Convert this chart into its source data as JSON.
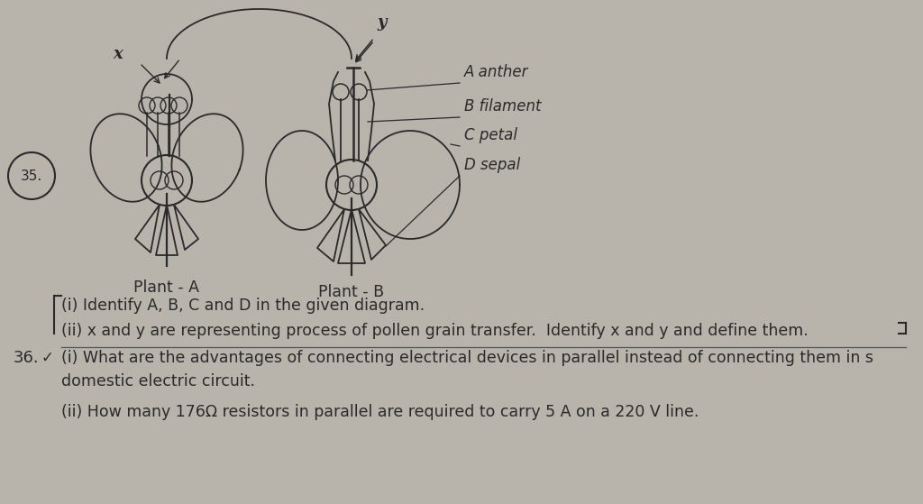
{
  "bg_color": "#b8b4ac",
  "page_color": "#d8d4cc",
  "question_number": "35.",
  "question_number_36": "36.",
  "plant_a_label": "Plant - A",
  "plant_b_label": "Plant - B",
  "label_a": "A anther",
  "label_b": "B filament",
  "label_c": "C petal",
  "label_d": "D sepal",
  "x_label": "x",
  "y_label": "y",
  "text_i": "(i) Identify A, B, C and D in the given diagram.",
  "text_ii": "(ii) x and y are representing process of pollen grain transfer.  Identify x and y and define them.",
  "text_36i": "(i) What are the advantages of connecting electrical devices in parallel instead of connecting them in s",
  "text_36i_cont": "domestic electric circuit.",
  "text_36ii": "(ii) How many 176Ω resistors in parallel are required to carry 5 A on a 220 V line.",
  "font_size_main": 12.5,
  "font_size_labels": 12,
  "font_size_qnum": 13
}
